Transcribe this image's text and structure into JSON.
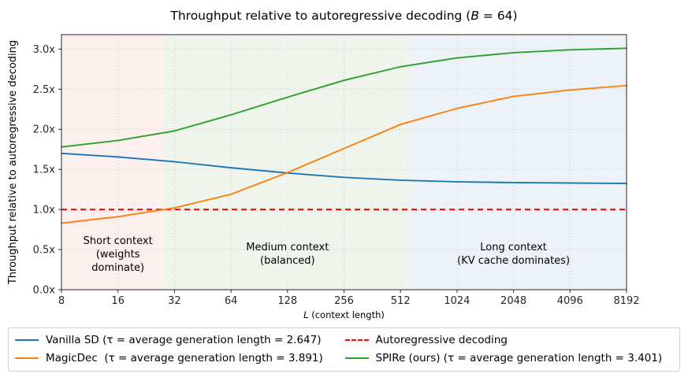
{
  "chart_data": {
    "type": "line",
    "title": {
      "prefix": "Throughput relative to autoregressive decoding (",
      "var": "B",
      "suffix": " = 64)"
    },
    "xlabel": {
      "var": "L",
      "rest": " (context length)"
    },
    "ylabel": "Throughput relative to autoregressive decoding",
    "x_scale": "log2",
    "xlim": [
      8,
      8192
    ],
    "ylim": [
      0,
      3.18
    ],
    "x": [
      8,
      16,
      32,
      64,
      128,
      256,
      512,
      1024,
      2048,
      4096,
      8192
    ],
    "xtick_labels": [
      "8",
      "16",
      "32",
      "64",
      "128",
      "256",
      "512",
      "1024",
      "2048",
      "4096",
      "8192"
    ],
    "yticks": [
      0,
      0.5,
      1.0,
      1.5,
      2.0,
      2.5,
      3.0
    ],
    "ytick_labels": [
      "0.0x",
      "0.5x",
      "1.0x",
      "1.5x",
      "2.0x",
      "2.5x",
      "3.0x"
    ],
    "grid": "dotted",
    "series": [
      {
        "name": "Vanilla SD",
        "color": "#1f77b4",
        "values": [
          1.7,
          1.655,
          1.595,
          1.52,
          1.455,
          1.4,
          1.365,
          1.345,
          1.335,
          1.33,
          1.325
        ]
      },
      {
        "name": "MagicDec",
        "color": "#ff7f0e",
        "values": [
          0.83,
          0.91,
          1.02,
          1.19,
          1.46,
          1.76,
          2.06,
          2.26,
          2.41,
          2.49,
          2.545
        ]
      },
      {
        "name": "SPIRe (ours)",
        "color": "#2ca02c",
        "values": [
          1.78,
          1.86,
          1.98,
          2.18,
          2.4,
          2.61,
          2.78,
          2.89,
          2.955,
          2.99,
          3.01
        ]
      }
    ],
    "reference_line": {
      "name": "Autoregressive decoding",
      "y": 1.0,
      "color": "#ff0000",
      "style": "dashed"
    },
    "regions": [
      {
        "name": "short-context",
        "x0": 8,
        "x1": 28,
        "color": "#fcf0ee"
      },
      {
        "name": "medium-context",
        "x0": 28,
        "x1": 580,
        "color": "#eff5ec"
      },
      {
        "name": "long-context",
        "x0": 580,
        "x1": 8192,
        "color": "#edf2f9"
      }
    ],
    "annotations": [
      {
        "x": 16,
        "y": 0.57,
        "lines": [
          "Short context",
          "(weights",
          "dominate)"
        ]
      },
      {
        "x": 128,
        "y": 0.49,
        "lines": [
          "Medium context",
          "(balanced)"
        ]
      },
      {
        "x": 2048,
        "y": 0.49,
        "lines": [
          "Long context",
          "(KV cache dominates)"
        ]
      }
    ]
  },
  "legend": {
    "position": "below-chart, 2 columns",
    "entries": [
      {
        "label": "Vanilla SD (τ = average generation length = 2.647)",
        "color": "#1f77b4",
        "style": "solid"
      },
      {
        "label": "Autoregressive decoding",
        "color": "#ff0000",
        "style": "dashed"
      },
      {
        "label": "MagicDec  (τ = average generation length = 3.891)",
        "color": "#ff7f0e",
        "style": "solid"
      },
      {
        "label": "SPIRe (ours) (τ = average generation length = 3.401)",
        "color": "#2ca02c",
        "style": "solid"
      }
    ]
  }
}
